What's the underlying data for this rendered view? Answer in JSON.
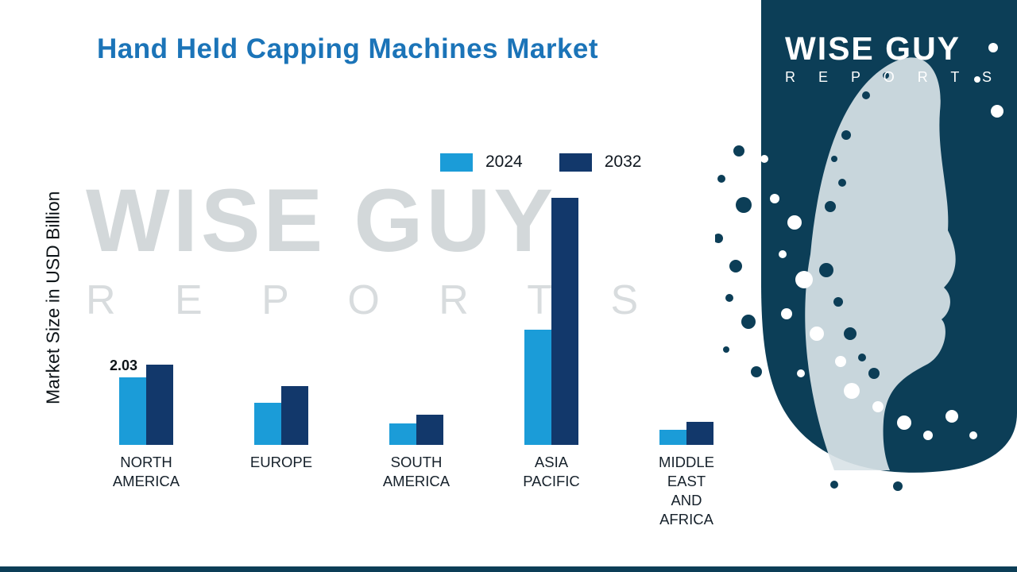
{
  "page": {
    "title": "Hand Held Capping Machines Market"
  },
  "colors": {
    "title_blue": "#1b74b8",
    "series_2024_blue": "#1b9cd8",
    "series_2032_navy": "#12386b",
    "hero_teal": "#0c3e57",
    "bottom_strip_teal": "#0c3e57",
    "watermark_gray": "#d3d8da"
  },
  "logo": {
    "line1": "WISE GUY",
    "line2": "R E P O R T S"
  },
  "watermark": {
    "line1": "WISE GUY",
    "line2": "R E P O R T S"
  },
  "legend": [
    {
      "label": "2024",
      "color": "#1b9cd8"
    },
    {
      "label": "2032",
      "color": "#12386b"
    }
  ],
  "chart_data": {
    "type": "bar",
    "title": "Hand Held Capping Machines Market",
    "ylabel": "Market Size in USD Billion",
    "xlabel": "",
    "ylim": [
      0,
      8
    ],
    "grid": false,
    "legend_position": "top",
    "categories": [
      "NORTH AMERICA",
      "EUROPE",
      "SOUTH AMERICA",
      "ASIA PACIFIC",
      "MIDDLE EAST AND AFRICA"
    ],
    "category_lines": [
      [
        "NORTH",
        "AMERICA"
      ],
      [
        "EUROPE"
      ],
      [
        "SOUTH",
        "AMERICA"
      ],
      [
        "ASIA",
        "PACIFIC"
      ],
      [
        "MIDDLE",
        "EAST",
        "AND",
        "AFRICA"
      ]
    ],
    "series": [
      {
        "name": "2024",
        "color": "#1b9cd8",
        "values": [
          2.03,
          1.25,
          0.65,
          3.45,
          0.45
        ]
      },
      {
        "name": "2032",
        "color": "#12386b",
        "values": [
          2.4,
          1.75,
          0.9,
          7.4,
          0.68
        ]
      }
    ],
    "annotations": [
      {
        "series": "2024",
        "category": "NORTH AMERICA",
        "text": "2.03"
      }
    ]
  }
}
